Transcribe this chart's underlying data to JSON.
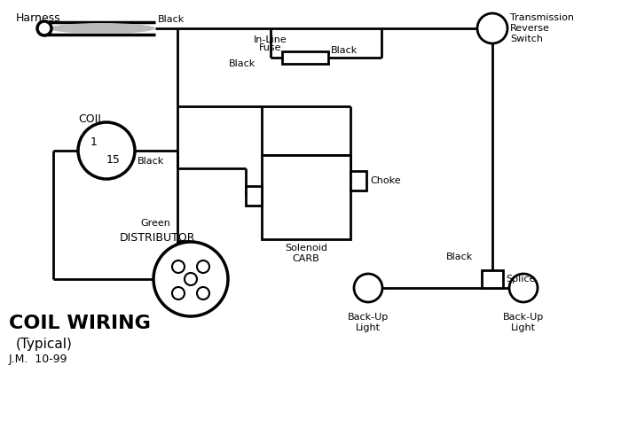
{
  "bg_color": "#ffffff",
  "line_color": "#000000",
  "title": "COIL WIRING",
  "subtitle": "(Typical)",
  "credit": "J.M.  10-99",
  "lw": 2.0,
  "lw_thick": 2.5,
  "labels": {
    "harness": "Harness",
    "black1": "Black",
    "black2": "Black",
    "black3": "Black",
    "black4": "Black",
    "black5": "Black",
    "inline_fuse_line1": "In-Line",
    "inline_fuse_line2": "Fuse",
    "transmission": "Transmission\nReverse\nSwitch",
    "coil": "COIL",
    "coil1": "1",
    "coil15": "15",
    "solenoid": "Solenoid",
    "carb": "CARB",
    "choke": "Choke",
    "distributor": "DISTRIBUTOR",
    "green": "Green",
    "splice": "Splice",
    "backup1": "Back-Up\nLight",
    "backup2": "Back-Up\nLight"
  }
}
